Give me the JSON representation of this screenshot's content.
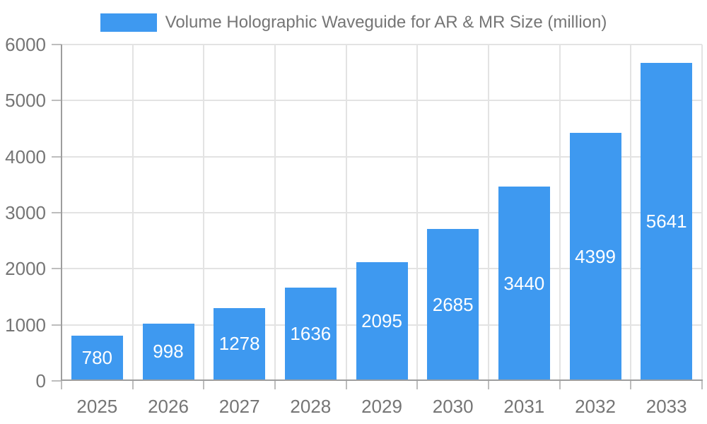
{
  "legend": {
    "label": "Volume Holographic Waveguide for AR & MR Size (million)"
  },
  "colors": {
    "bar": "#3E99F0",
    "axis_line": "#9E9E9E",
    "tick": "#BDBDBD",
    "grid": "#E3E3E3",
    "axis_label": "#757575",
    "value_label": "#FFFFFF",
    "background": "#FFFFFF"
  },
  "chart_data": {
    "type": "bar",
    "title": "Volume Holographic Waveguide for AR & MR Size (million)",
    "series_name": "Volume Holographic Waveguide for AR & MR Size (million)",
    "categories": [
      "2025",
      "2026",
      "2027",
      "2028",
      "2029",
      "2030",
      "2031",
      "2032",
      "2033"
    ],
    "values": [
      780,
      998,
      1278,
      1636,
      2095,
      2685,
      3440,
      4399,
      5641
    ],
    "xlabel": "",
    "ylabel": "",
    "ylim": [
      0,
      6000
    ],
    "yticks": [
      0,
      1000,
      2000,
      3000,
      4000,
      5000,
      6000
    ],
    "ytick_labels": [
      "0",
      "1000",
      "2000",
      "3000",
      "4000",
      "5000",
      "6000"
    ],
    "grid": true,
    "legend_position": "top-center",
    "value_labels": "inside-center-white"
  }
}
